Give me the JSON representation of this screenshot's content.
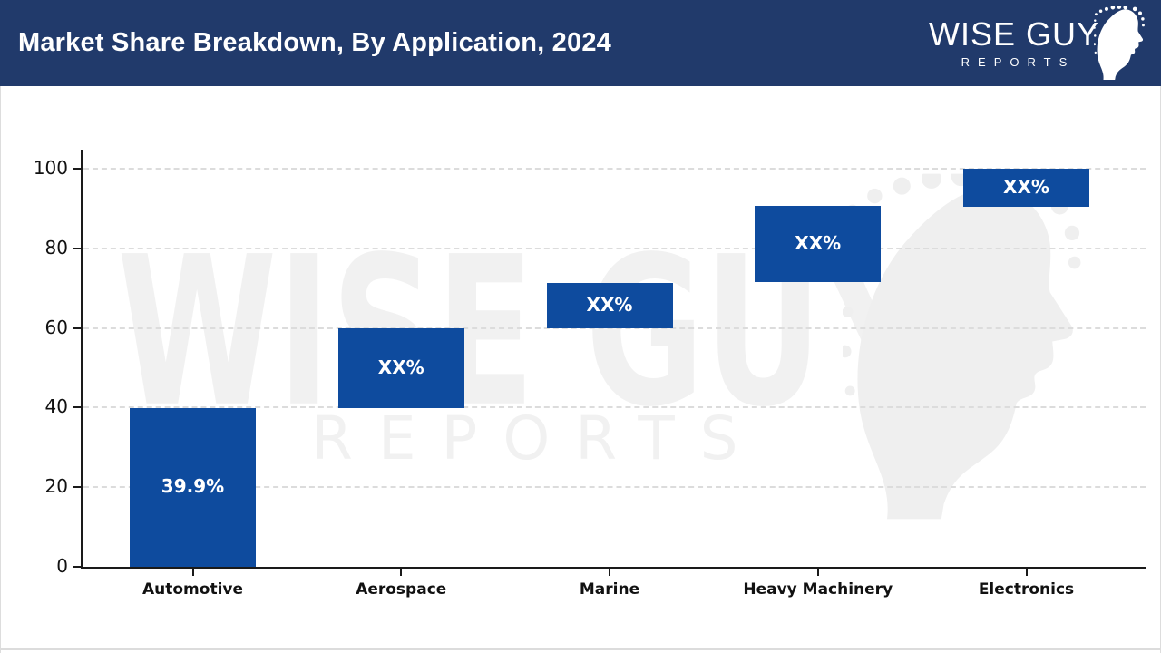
{
  "header": {
    "title": "Market Share Breakdown, By Application, 2024",
    "bg_color": "#213A6B",
    "text_color": "#FFFFFF",
    "logo": {
      "line1": "WISE GUY",
      "line2": "REPORTS"
    }
  },
  "watermark": {
    "line1": "WISE GUY",
    "line2": "REPORTS"
  },
  "chart_data": {
    "type": "bar",
    "subtype": "waterfall",
    "title": "Market Share Breakdown, By Application, 2024",
    "xlabel": "",
    "ylabel": "",
    "categories": [
      "Automotive",
      "Aerospace",
      "Marine",
      "Heavy Machinery",
      "Electronics"
    ],
    "segments": [
      {
        "category": "Automotive",
        "start": 0,
        "end": 39.9,
        "label": "39.9%"
      },
      {
        "category": "Aerospace",
        "start": 39.9,
        "end": 59.9,
        "label": "XX%"
      },
      {
        "category": "Marine",
        "start": 60.0,
        "end": 71.3,
        "label": "XX%"
      },
      {
        "category": "Heavy Machinery",
        "start": 71.6,
        "end": 90.7,
        "label": "XX%"
      },
      {
        "category": "Electronics",
        "start": 90.4,
        "end": 100,
        "label": "XX%"
      }
    ],
    "ylim": [
      0,
      105
    ],
    "y_ticks": [
      0,
      20,
      40,
      60,
      80,
      100
    ],
    "grid": "horizontal dashed",
    "legend": "none",
    "bar_color": "#0E4B9E",
    "bar_label_color": "#FFFFFF",
    "axis_color": "#1a1a1a",
    "grid_color": "#dcdcdc"
  }
}
